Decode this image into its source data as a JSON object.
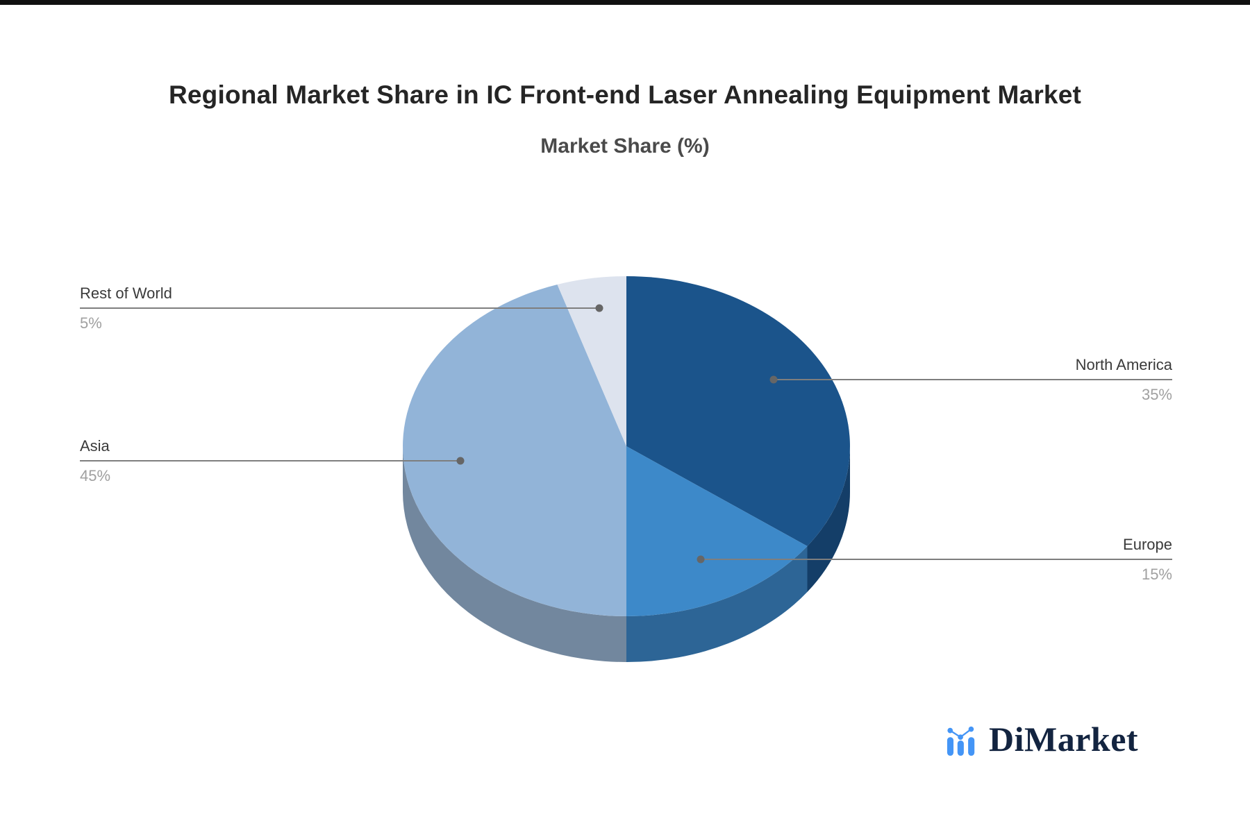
{
  "header": {
    "title": "Regional Market Share in IC Front-end Laser Annealing Equipment Market",
    "subtitle": "Market Share (%)"
  },
  "chart_data": {
    "type": "pie",
    "style": "3d",
    "title": "Regional Market Share in IC Front-end Laser Annealing Equipment Market",
    "subtitle": "Market Share (%)",
    "unit": "%",
    "labels": [
      "North America",
      "Europe",
      "Asia",
      "Rest of World"
    ],
    "values": [
      35,
      15,
      45,
      5
    ],
    "value_labels": [
      "35%",
      "15%",
      "45%",
      "5%"
    ],
    "colors": [
      "#1b548b",
      "#3d89c9",
      "#92b4d8",
      "#dde3ee"
    ],
    "side_colors": [
      "#143e68",
      "#2d6596",
      "#72879e",
      "#b9c3d4"
    ],
    "start_angle_deg": 0,
    "direction": "clockwise",
    "legend_position": "callout-labels",
    "callout_line_color": "#7e7e7e",
    "callout_dot_color": "#666666"
  },
  "logo": {
    "text": "DiMarket",
    "icon": "bar-line-chart-icon",
    "icon_color": "#4495f6",
    "text_color": "#132440"
  }
}
